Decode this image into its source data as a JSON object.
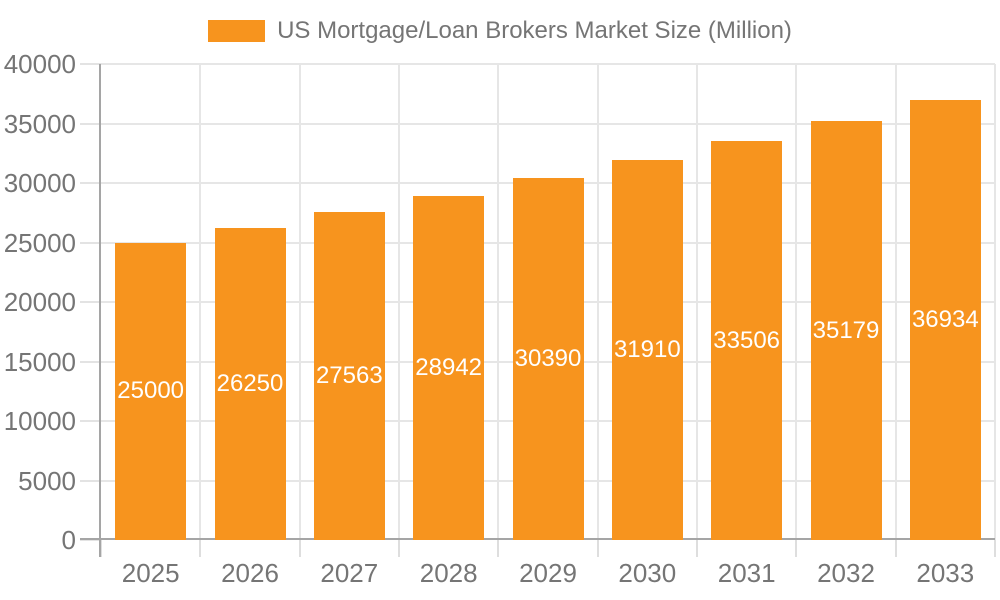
{
  "chart_data": {
    "type": "bar",
    "title": "US Mortgage/Loan Brokers Market Size (Million)",
    "categories": [
      "2025",
      "2026",
      "2027",
      "2028",
      "2029",
      "2030",
      "2031",
      "2032",
      "2033"
    ],
    "values": [
      25000,
      26250,
      27563,
      28942,
      30390,
      31910,
      33506,
      35179,
      36934
    ],
    "series": [
      {
        "name": "US Mortgage/Loan Brokers Market Size (Million)",
        "values": [
          25000,
          26250,
          27563,
          28942,
          30390,
          31910,
          33506,
          35179,
          36934
        ]
      }
    ],
    "xlabel": "",
    "ylabel": "",
    "ylim": [
      0,
      40000
    ],
    "y_ticks": [
      0,
      5000,
      10000,
      15000,
      20000,
      25000,
      30000,
      35000,
      40000
    ],
    "grid": true,
    "legend_position": "top",
    "data_labels": "inside-center",
    "colors": {
      "bar": "#f7941e",
      "axis": "#a5a5a5",
      "gridline": "#e6e6e6",
      "tick": "#e3e3e3",
      "text": "#757575",
      "data_label": "#ffffff",
      "background": "#ffffff"
    }
  }
}
